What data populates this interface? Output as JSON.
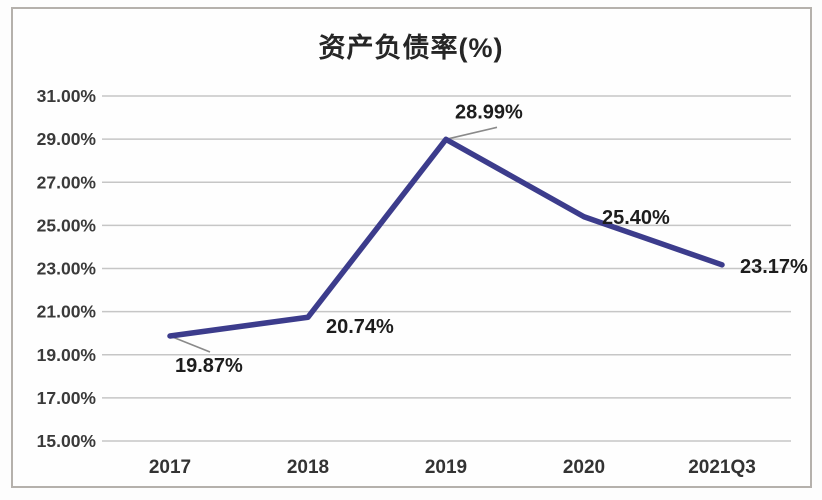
{
  "chart_data": {
    "type": "line",
    "title": "资产负债率(%)",
    "categories": [
      "2017",
      "2018",
      "2019",
      "2020",
      "2021Q3"
    ],
    "values": [
      19.87,
      20.74,
      28.99,
      25.4,
      23.17
    ],
    "data_labels": [
      "19.87%",
      "20.74%",
      "28.99%",
      "25.40%",
      "23.17%"
    ],
    "y_ticks": [
      {
        "value": 31,
        "label": "31.00%"
      },
      {
        "value": 29,
        "label": "29.00%"
      },
      {
        "value": 27,
        "label": "27.00%"
      },
      {
        "value": 25,
        "label": "25.00%"
      },
      {
        "value": 23,
        "label": "23.00%"
      },
      {
        "value": 21,
        "label": "21.00%"
      },
      {
        "value": 19,
        "label": "19.00%"
      },
      {
        "value": 17,
        "label": "17.00%"
      },
      {
        "value": 15,
        "label": "15.00%"
      }
    ],
    "ylim": [
      15,
      31
    ],
    "grid": true,
    "legend": "none",
    "line_color": "#3c3c8c"
  }
}
